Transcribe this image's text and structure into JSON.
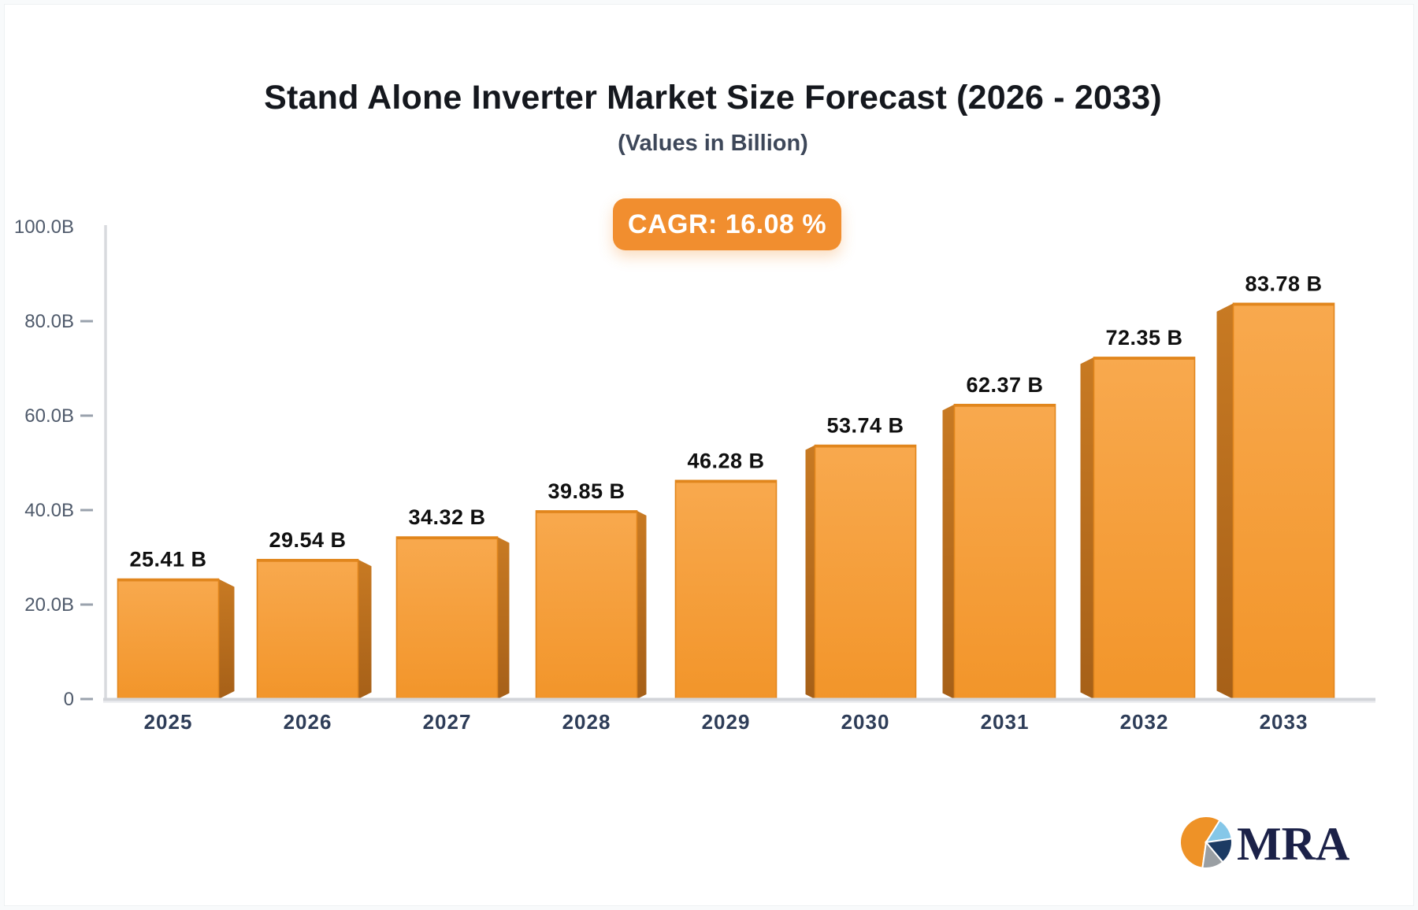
{
  "header": {
    "title": "Stand Alone Inverter Market Size Forecast (2026 - 2033)",
    "subtitle": "(Values in Billion)",
    "cagr_badge": "CAGR: 16.08 %"
  },
  "chart_data": {
    "type": "bar",
    "title": "Stand Alone Inverter Market Size Forecast (2026 - 2033)",
    "subtitle": "(Values in Billion)",
    "cagr_percent": 16.08,
    "categories": [
      "2025",
      "2026",
      "2027",
      "2028",
      "2029",
      "2030",
      "2031",
      "2032",
      "2033"
    ],
    "values": [
      25.41,
      29.54,
      34.32,
      39.85,
      46.28,
      53.74,
      62.37,
      72.35,
      83.78
    ],
    "value_labels": [
      "25.41 B",
      "29.54 B",
      "34.32 B",
      "39.85 B",
      "46.28 B",
      "53.74 B",
      "62.37 B",
      "72.35 B",
      "83.78 B"
    ],
    "unit": "Billion",
    "xlabel": "",
    "ylabel": "",
    "ylim": [
      0,
      100
    ],
    "grid": false,
    "legend": false,
    "y_ticks": [
      {
        "value": 100,
        "label": "100.0B",
        "tick": false
      },
      {
        "value": 80,
        "label": "80.0B",
        "tick": true
      },
      {
        "value": 60,
        "label": "60.0B",
        "tick": true
      },
      {
        "value": 40,
        "label": "40.0B",
        "tick": true
      },
      {
        "value": 20,
        "label": "20.0B",
        "tick": true
      },
      {
        "value": 0,
        "label": "0",
        "tick": true
      }
    ],
    "colors": {
      "bar_front_top": "#F8A94E",
      "bar_front_bottom": "#F2952A",
      "bar_front_border": "#E1861D",
      "bar_side_top": "#C87A23",
      "bar_side_bottom": "#A66018",
      "badge_accent": "#F18E2F",
      "axis_line": "#D8DADE",
      "baseline": "#D2D4D9",
      "baseline_shadow": "#E9EAEE",
      "tick_mark": "#9AA2AD",
      "y_label_text": "#4F5A6B",
      "x_label_text": "#2E3D58",
      "value_label_text": "#101010"
    }
  },
  "logo": {
    "text": "MRA",
    "text_color": "#1B2148",
    "pie": {
      "name": "pie-chart-icon",
      "slices": [
        {
          "name": "orange",
          "color": "#EE9227",
          "start": 58,
          "end": 262
        },
        {
          "name": "light-blue",
          "color": "#85C7E8",
          "start": 8,
          "end": 58
        },
        {
          "name": "navy",
          "color": "#1C3B63",
          "start": -50,
          "end": 8
        },
        {
          "name": "gray",
          "color": "#9A9FA3",
          "start": -98,
          "end": -50
        }
      ]
    }
  }
}
